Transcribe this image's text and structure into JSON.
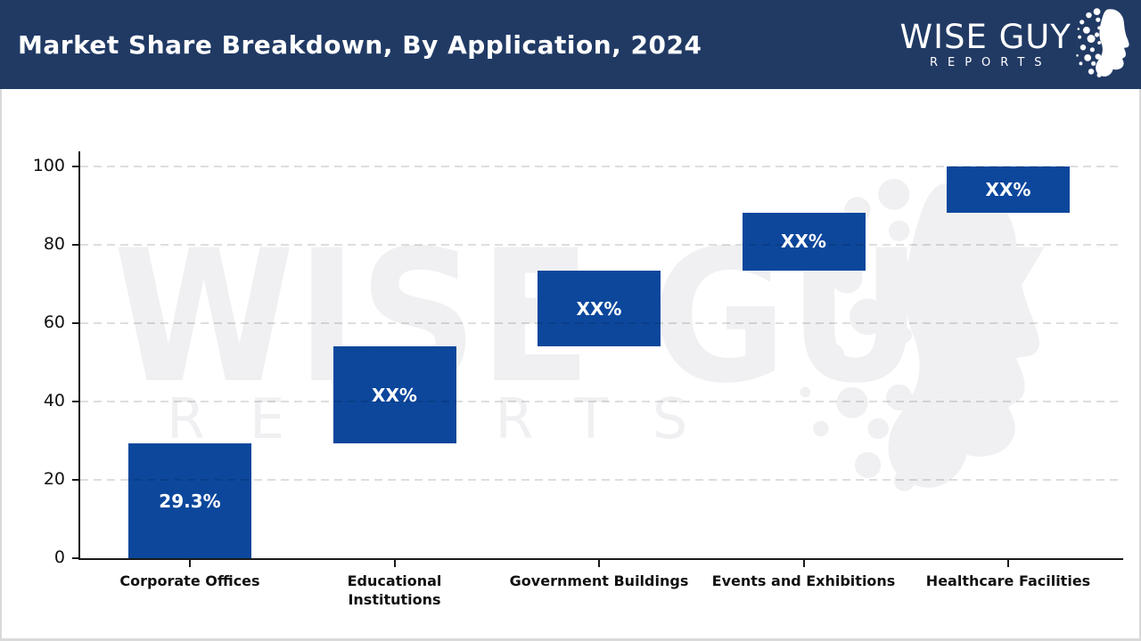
{
  "header": {
    "title": "Market Share Breakdown, By Application, 2024",
    "logo": {
      "line1": "WISE GUY",
      "line2": "REPORTS"
    }
  },
  "watermark": {
    "line1": "WISE GUY",
    "line2": "REPORTS"
  },
  "colors": {
    "header_bg": "#213a64",
    "bar": "#0c479c",
    "bar_label": "#ffffff",
    "axis": "#1a1a1a",
    "watermark": "#f0f0f2",
    "border": "#d9d9d9"
  },
  "chart_data": {
    "type": "bar",
    "subtype": "waterfall",
    "title": "Market Share Breakdown, By Application, 2024",
    "categories": [
      "Corporate Offices",
      "Educational Institutions",
      "Government Buildings",
      "Events and Exhibitions",
      "Healthcare Facilities"
    ],
    "segments": [
      {
        "category": "Corporate Offices",
        "start": 0,
        "end": 29.3,
        "label": "29.3%"
      },
      {
        "category": "Educational Institutions",
        "start": 29.3,
        "end": 54.0,
        "label": "XX%"
      },
      {
        "category": "Government Buildings",
        "start": 54.0,
        "end": 73.5,
        "label": "XX%"
      },
      {
        "category": "Events and Exhibitions",
        "start": 73.5,
        "end": 88.2,
        "label": "XX%"
      },
      {
        "category": "Healthcare Facilities",
        "start": 88.2,
        "end": 100,
        "label": "XX%"
      }
    ],
    "y_ticks": [
      0,
      20,
      40,
      60,
      80,
      100
    ],
    "ylim": [
      0,
      100
    ],
    "xlabel": "",
    "ylabel": "",
    "grid": "dashed-horizontal",
    "legend": "none",
    "bar_color": "#0c479c",
    "label_color": "#ffffff"
  }
}
